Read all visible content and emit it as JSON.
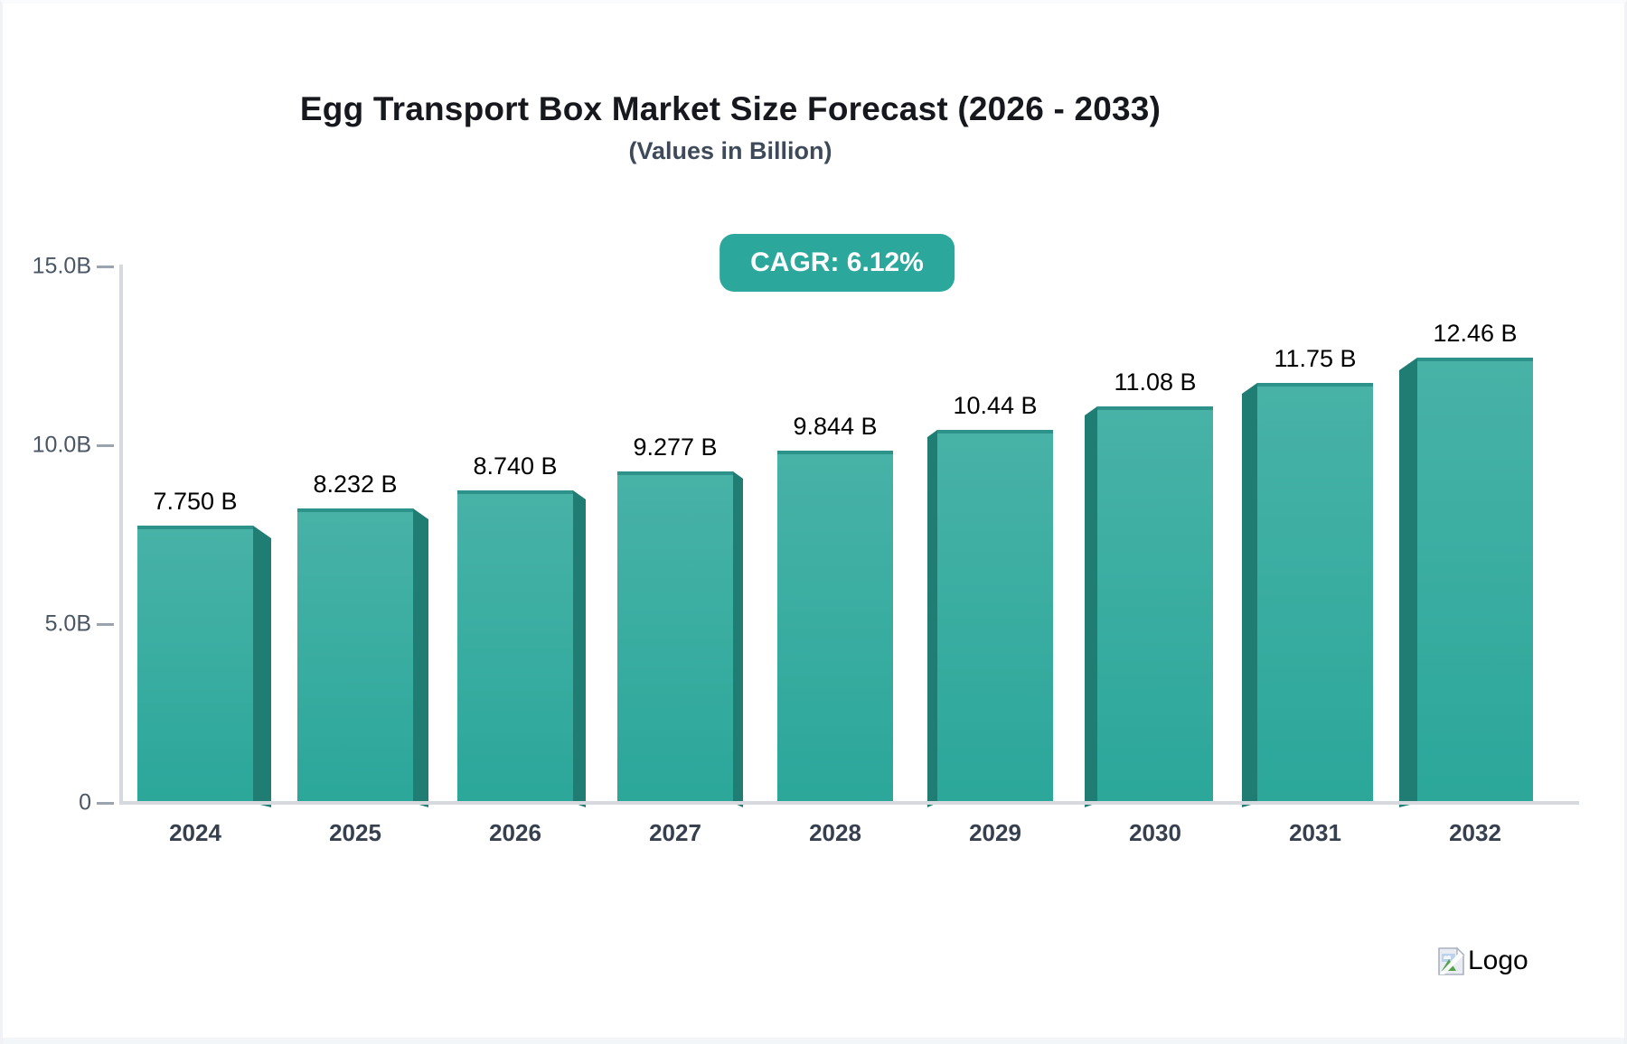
{
  "header": {
    "title": "Egg Transport Box Market Size Forecast (2026 - 2033)",
    "subtitle": "(Values in Billion)"
  },
  "badge": {
    "label": "CAGR: 6.12%"
  },
  "y_axis": {
    "ticks": [
      {
        "label": "15.0B",
        "value": 15
      },
      {
        "label": "10.0B",
        "value": 10
      },
      {
        "label": "5.0B",
        "value": 5
      },
      {
        "label": "0",
        "value": 0
      }
    ]
  },
  "bars": [
    {
      "year": "2024",
      "value": 7.75,
      "label": "7.750 B"
    },
    {
      "year": "2025",
      "value": 8.232,
      "label": "8.232 B"
    },
    {
      "year": "2026",
      "value": 8.74,
      "label": "8.740 B"
    },
    {
      "year": "2027",
      "value": 9.277,
      "label": "9.277 B"
    },
    {
      "year": "2028",
      "value": 9.844,
      "label": "9.844 B"
    },
    {
      "year": "2029",
      "value": 10.44,
      "label": "10.44 B"
    },
    {
      "year": "2030",
      "value": 11.08,
      "label": "11.08 B"
    },
    {
      "year": "2031",
      "value": 11.75,
      "label": "11.75 B"
    },
    {
      "year": "2032",
      "value": 12.46,
      "label": "12.46 B"
    }
  ],
  "logo": {
    "alt_text": "Logo"
  },
  "colors": {
    "bar_top": "#48b2a7",
    "bar_bottom": "#2ba79a",
    "bar_side": "#1f7d73",
    "bar_cap": "#2d9289",
    "badge_bg": "#2ba89b",
    "axis_line": "#d6dade"
  },
  "chart_data": {
    "type": "bar",
    "title": "Egg Transport Box Market Size Forecast (2026 - 2033)",
    "subtitle": "(Values in Billion)",
    "annotation": "CAGR: 6.12%",
    "categories": [
      "2024",
      "2025",
      "2026",
      "2027",
      "2028",
      "2029",
      "2030",
      "2031",
      "2032"
    ],
    "values": [
      7.75,
      8.232,
      8.74,
      9.277,
      9.844,
      10.44,
      11.08,
      11.75,
      12.46
    ],
    "value_labels": [
      "7.750 B",
      "8.232 B",
      "8.740 B",
      "9.277 B",
      "9.844 B",
      "10.44 B",
      "11.08 B",
      "11.75 B",
      "12.46 B"
    ],
    "xlabel": "",
    "ylabel": "",
    "ylim": [
      0,
      15
    ],
    "ytick_labels": [
      "0",
      "5.0B",
      "10.0B",
      "15.0B"
    ],
    "grid": false,
    "legend": false,
    "style": "3d-perspective-teal"
  }
}
